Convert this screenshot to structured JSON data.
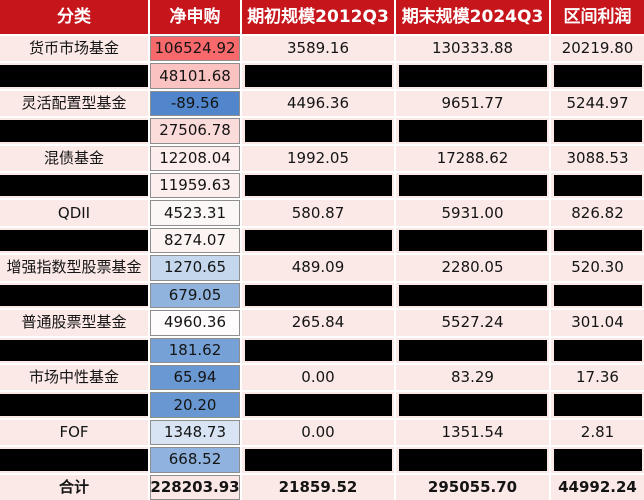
{
  "colors": {
    "header_bg": "#C6161C",
    "header_text": "#FFFFFF",
    "row_bg": "#FBE9E8",
    "bar": "#000000",
    "net_border": "#8E8E8E",
    "text": "#141414",
    "net_scale_max_red": "#F8696B",
    "net_scale_min_blue": "#5186CD"
  },
  "chart_data": {
    "type": "table",
    "title": "",
    "columns": [
      "分类",
      "净申购",
      "期初规模2012Q3",
      "期末规模2024Q3",
      "区间利润"
    ],
    "rows": [
      {
        "category": "货币市场基金",
        "net": "106524.92",
        "begin": "3589.16",
        "end": "130333.88",
        "profit": "20219.80",
        "net_bg": "#F8696B",
        "redacted": false,
        "bold": false
      },
      {
        "category": null,
        "net": "48101.68",
        "begin": null,
        "end": null,
        "profit": null,
        "net_bg": "#FAC3C2",
        "redacted": true,
        "bold": false
      },
      {
        "category": "灵活配置型基金",
        "net": "-89.56",
        "begin": "4496.36",
        "end": "9651.77",
        "profit": "5244.97",
        "net_bg": "#5186CD",
        "redacted": false,
        "bold": false
      },
      {
        "category": null,
        "net": "27506.78",
        "begin": null,
        "end": null,
        "profit": null,
        "net_bg": "#FBDCDB",
        "redacted": true,
        "bold": false
      },
      {
        "category": "混债基金",
        "net": "12208.04",
        "begin": "1992.05",
        "end": "17288.62",
        "profit": "3088.53",
        "net_bg": "#FDEDEC",
        "redacted": false,
        "bold": false
      },
      {
        "category": null,
        "net": "11959.63",
        "begin": null,
        "end": null,
        "profit": null,
        "net_bg": "#FDEFEE",
        "redacted": true,
        "bold": false
      },
      {
        "category": "QDII",
        "net": "4523.31",
        "begin": "580.87",
        "end": "5931.00",
        "profit": "826.82",
        "net_bg": "#FCF7F7",
        "redacted": false,
        "bold": false
      },
      {
        "category": null,
        "net": "8274.07",
        "begin": null,
        "end": null,
        "profit": null,
        "net_bg": "#FCF4F3",
        "redacted": true,
        "bold": false
      },
      {
        "category": "增强指数型股票基金",
        "net": "1270.65",
        "begin": "489.09",
        "end": "2280.05",
        "profit": "520.30",
        "net_bg": "#C4D7ED",
        "redacted": false,
        "bold": false
      },
      {
        "category": null,
        "net": "679.05",
        "begin": null,
        "end": null,
        "profit": null,
        "net_bg": "#90B3DE",
        "redacted": true,
        "bold": false
      },
      {
        "category": "普通股票型基金",
        "net": "4960.36",
        "begin": "265.84",
        "end": "5527.24",
        "profit": "301.04",
        "net_bg": "#FEFCFC",
        "redacted": false,
        "bold": false
      },
      {
        "category": null,
        "net": "181.62",
        "begin": null,
        "end": null,
        "profit": null,
        "net_bg": "#76A1D7",
        "redacted": true,
        "bold": false
      },
      {
        "category": "市场中性基金",
        "net": "65.94",
        "begin": "0.00",
        "end": "83.29",
        "profit": "17.36",
        "net_bg": "#6A98D2",
        "redacted": false,
        "bold": false
      },
      {
        "category": null,
        "net": "20.20",
        "begin": null,
        "end": null,
        "profit": null,
        "net_bg": "#6897D2",
        "redacted": true,
        "bold": false
      },
      {
        "category": "FOF",
        "net": "1348.73",
        "begin": "0.00",
        "end": "1351.54",
        "profit": "2.81",
        "net_bg": "#D8E3F3",
        "redacted": false,
        "bold": false
      },
      {
        "category": null,
        "net": "668.52",
        "begin": null,
        "end": null,
        "profit": null,
        "net_bg": "#8FB2DE",
        "redacted": true,
        "bold": false
      },
      {
        "category": "合计",
        "net": "228203.93",
        "begin": "21859.52",
        "end": "295055.70",
        "profit": "44992.24",
        "net_bg": "#FBE7E6",
        "redacted": false,
        "bold": true
      }
    ]
  }
}
